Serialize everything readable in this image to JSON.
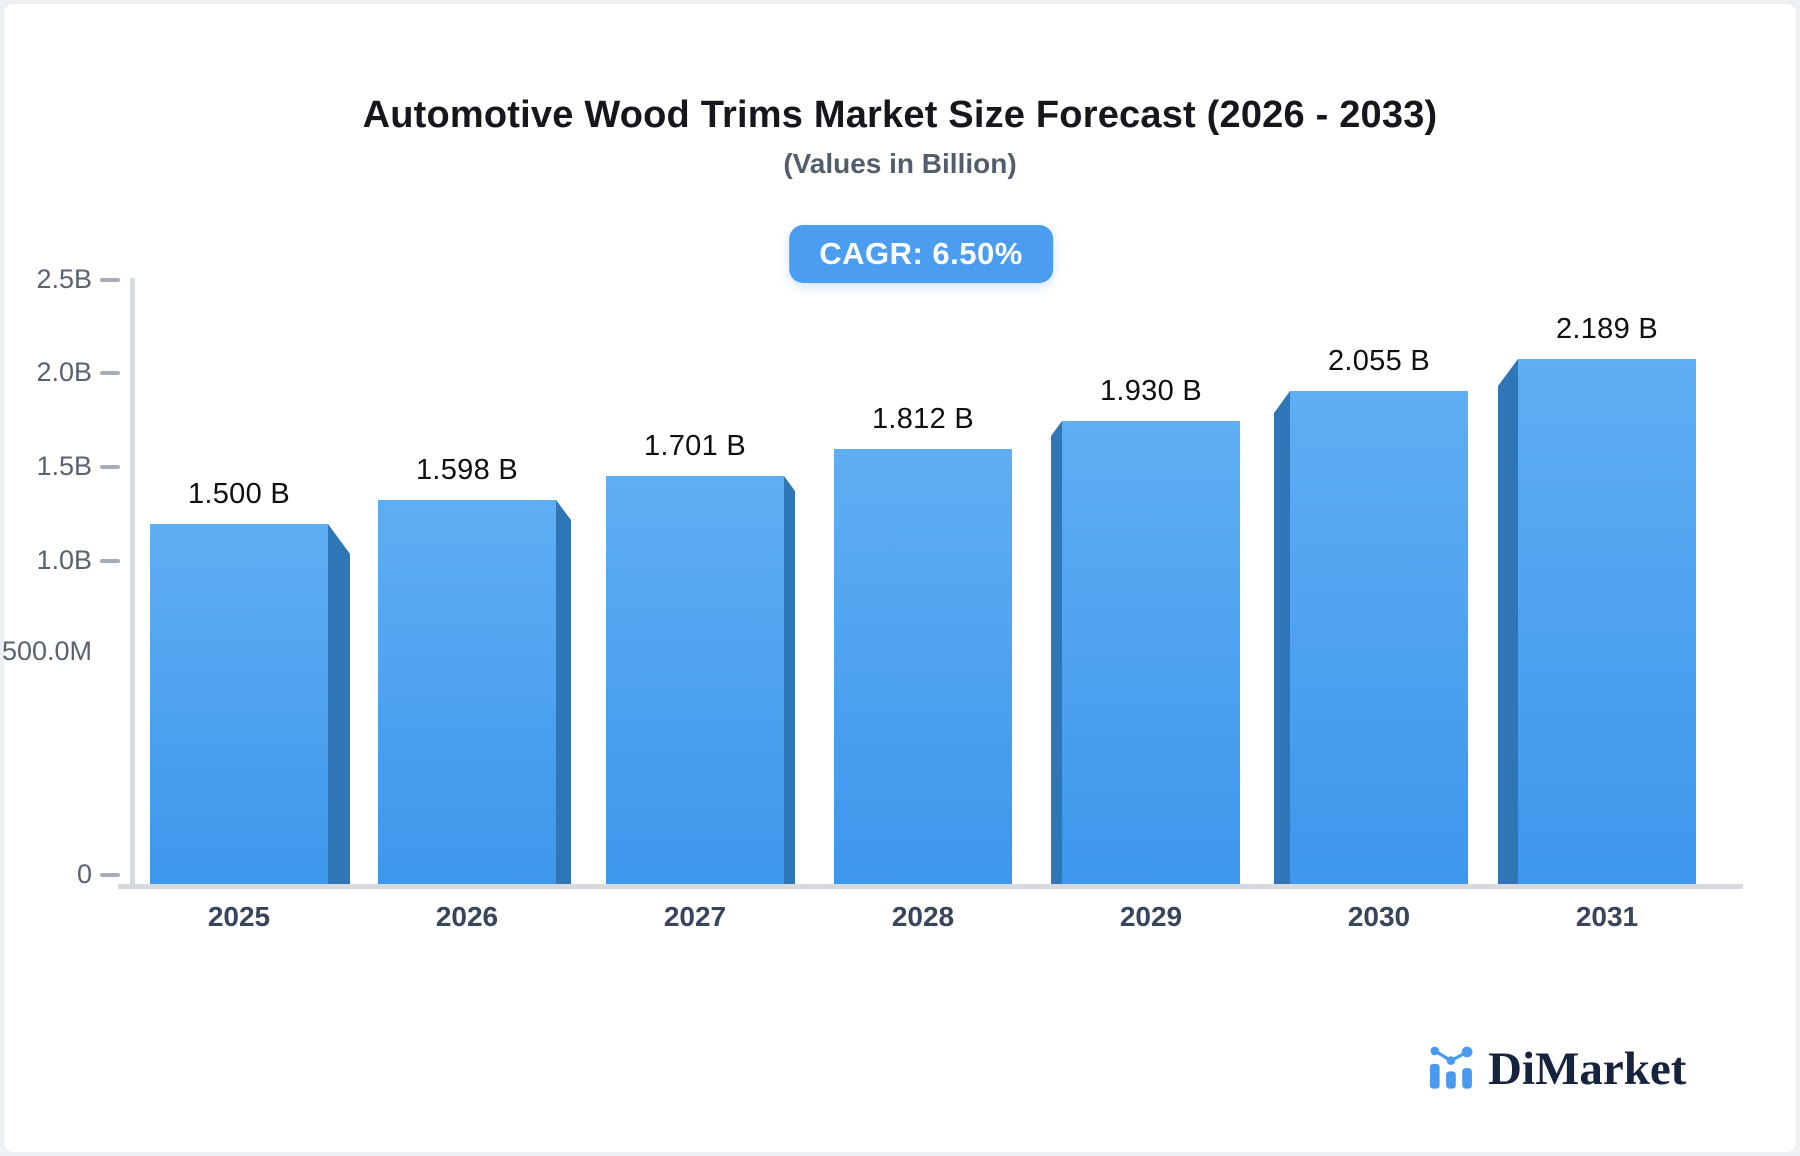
{
  "page": {
    "title": "Automotive Wood Trims Market Size Forecast (2026 - 2033)",
    "subtitle": "(Values in Billion)",
    "cagr_badge": "CAGR: 6.50%"
  },
  "chart_data": {
    "type": "bar",
    "title": "Automotive Wood Trims Market Size Forecast (2026 - 2033)",
    "subtitle": "(Values in Billion)",
    "cagr": "6.50%",
    "categories": [
      "2025",
      "2026",
      "2027",
      "2028",
      "2029",
      "2030",
      "2031"
    ],
    "values": [
      1.5,
      1.598,
      1.701,
      1.812,
      1.93,
      2.055,
      2.189
    ],
    "value_labels": [
      "1.500 B",
      "1.598 B",
      "1.701 B",
      "1.812 B",
      "1.930 B",
      "2.055 B",
      "2.189 B"
    ],
    "unit": "B",
    "y_ticks": [
      "2.5B",
      "2.0B",
      "1.5B",
      "1.0B",
      "500.0M",
      "0"
    ],
    "ylim": [
      0,
      2.5
    ],
    "grid": false,
    "legend": "none",
    "bar_style": "3d-bevel"
  },
  "branding": {
    "logo_text": "DiMarket",
    "logo_icon": "bar-chart-sparkline-icon"
  },
  "colors": {
    "bar_front_top": "#5faef3",
    "bar_front_bottom": "#3d97ec",
    "bar_side": "#2e76b5",
    "badge_bg": "#4a9def",
    "badge_text": "#ffffff",
    "axis_line": "#d6d9de",
    "y_label": "#59626e",
    "x_label": "#39455a",
    "value_label": "#0e0f12",
    "title": "#15171c",
    "subtitle": "#525e6b",
    "logo_blue": "#4a9bef",
    "logo_navy": "#16233c"
  }
}
